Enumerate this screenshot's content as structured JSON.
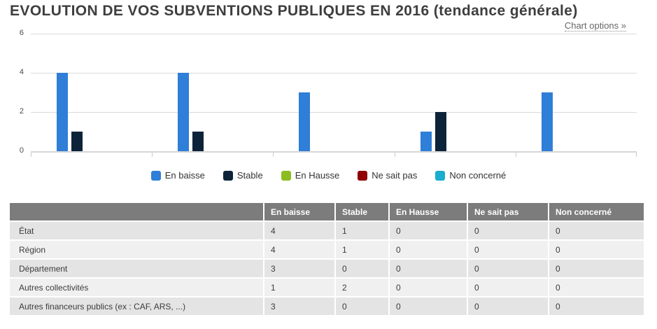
{
  "page": {
    "title": "EVOLUTION DE VOS SUBVENTIONS PUBLIQUES EN 2016 (tendance générale)",
    "chart_options_label": "Chart options »"
  },
  "chart_data": {
    "type": "bar",
    "title": "EVOLUTION DE VOS SUBVENTIONS PUBLIQUES EN 2016 (tendance générale)",
    "categories": [
      "État",
      "Région",
      "Département",
      "Autres collectivités",
      "Autres financeurs publics (ex : CAF, ARS, ...)"
    ],
    "series": [
      {
        "name": "En baisse",
        "color": "#2f7ed8",
        "values": [
          4,
          4,
          3,
          1,
          3
        ]
      },
      {
        "name": "Stable",
        "color": "#0d233a",
        "values": [
          1,
          1,
          0,
          2,
          0
        ]
      },
      {
        "name": "En Hausse",
        "color": "#8bbc21",
        "values": [
          0,
          0,
          0,
          0,
          0
        ]
      },
      {
        "name": "Ne sait pas",
        "color": "#910000",
        "values": [
          0,
          0,
          0,
          0,
          0
        ]
      },
      {
        "name": "Non concerné",
        "color": "#1aadce",
        "values": [
          0,
          0,
          0,
          0,
          0
        ]
      }
    ],
    "xlabel": "",
    "ylabel": "",
    "ylim": [
      0,
      6
    ],
    "yticks": [
      0,
      2,
      4,
      6
    ],
    "grid": true,
    "x_axis_labels_visible": false,
    "legend_position": "bottom"
  },
  "table": {
    "columns": [
      "",
      "En baisse",
      "Stable",
      "En Hausse",
      "Ne sait pas",
      "Non concerné"
    ],
    "rows": [
      {
        "label": "État",
        "values": [
          "4",
          "1",
          "0",
          "0",
          "0"
        ]
      },
      {
        "label": "Région",
        "values": [
          "4",
          "1",
          "0",
          "0",
          "0"
        ]
      },
      {
        "label": "Département",
        "values": [
          "3",
          "0",
          "0",
          "0",
          "0"
        ]
      },
      {
        "label": "Autres collectivités",
        "values": [
          "1",
          "2",
          "0",
          "0",
          "0"
        ]
      },
      {
        "label": "Autres financeurs publics (ex : CAF, ARS, ...)",
        "values": [
          "3",
          "0",
          "0",
          "0",
          "0"
        ]
      }
    ]
  }
}
